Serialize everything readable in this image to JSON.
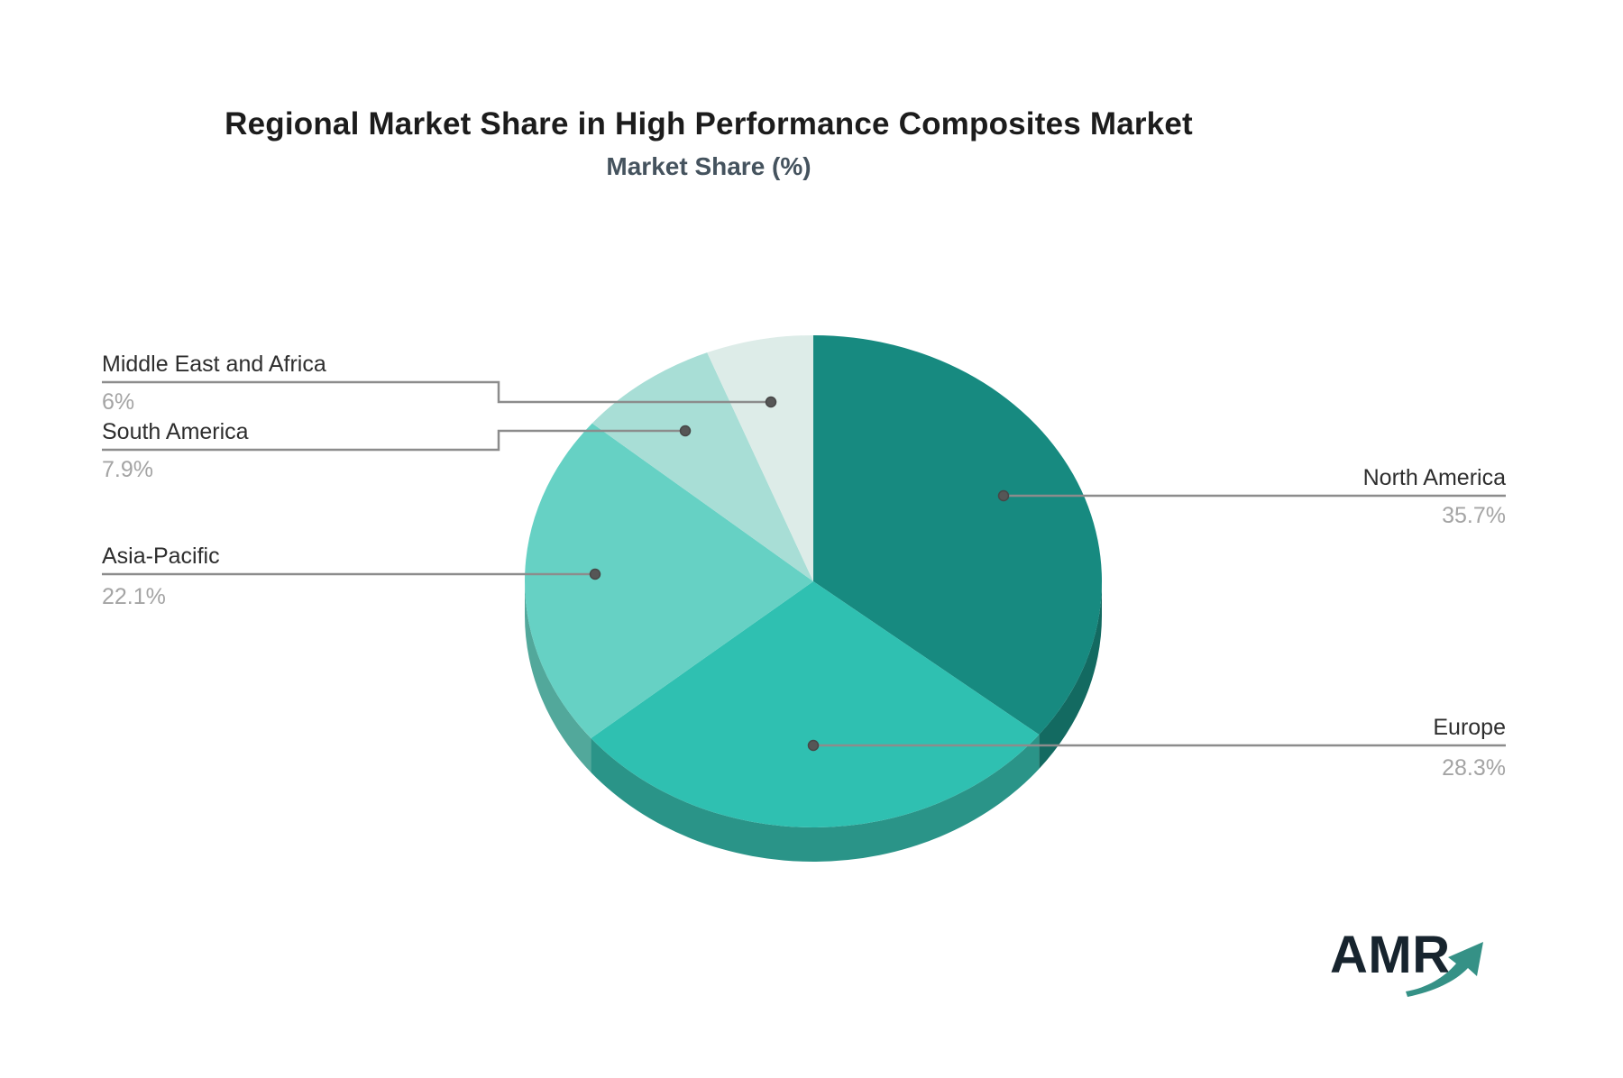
{
  "header": {
    "title": "Regional Market Share in High Performance Composites Market",
    "subtitle": "Market Share (%)"
  },
  "chart_data": {
    "type": "pie",
    "style": "3d",
    "title": "Regional Market Share in High Performance Composites Market",
    "subtitle": "Market Share (%)",
    "unit": "%",
    "start_angle_deg": 0,
    "direction": "clockwise",
    "slices": [
      {
        "label": "North America",
        "value": 35.7,
        "pct_label": "35.7%",
        "color": "#178a80",
        "side_color": "#136a61",
        "label_side": "right"
      },
      {
        "label": "Europe",
        "value": 28.3,
        "pct_label": "28.3%",
        "color": "#2fc0b1",
        "side_color": "#2a9488",
        "label_side": "right"
      },
      {
        "label": "Asia-Pacific",
        "value": 22.1,
        "pct_label": "22.1%",
        "color": "#66d1c4",
        "side_color": "#52a89b",
        "label_side": "left"
      },
      {
        "label": "South America",
        "value": 7.9,
        "pct_label": "7.9%",
        "color": "#a8ded6",
        "side_color": "#8fc4bb",
        "label_side": "left"
      },
      {
        "label": "Middle East and Africa",
        "value": 6,
        "pct_label": "6%",
        "color": "#ddece8",
        "side_color": "#c2d8d2",
        "label_side": "left"
      }
    ],
    "leader_line_color": "#8c8c8c",
    "dot_color": "#565656",
    "label_text_color": "#2e2e2e",
    "pct_text_color": "#a4a4a4"
  },
  "logo": {
    "text": "AMR",
    "text_color": "#17242e",
    "arrow_color": "#359186"
  }
}
